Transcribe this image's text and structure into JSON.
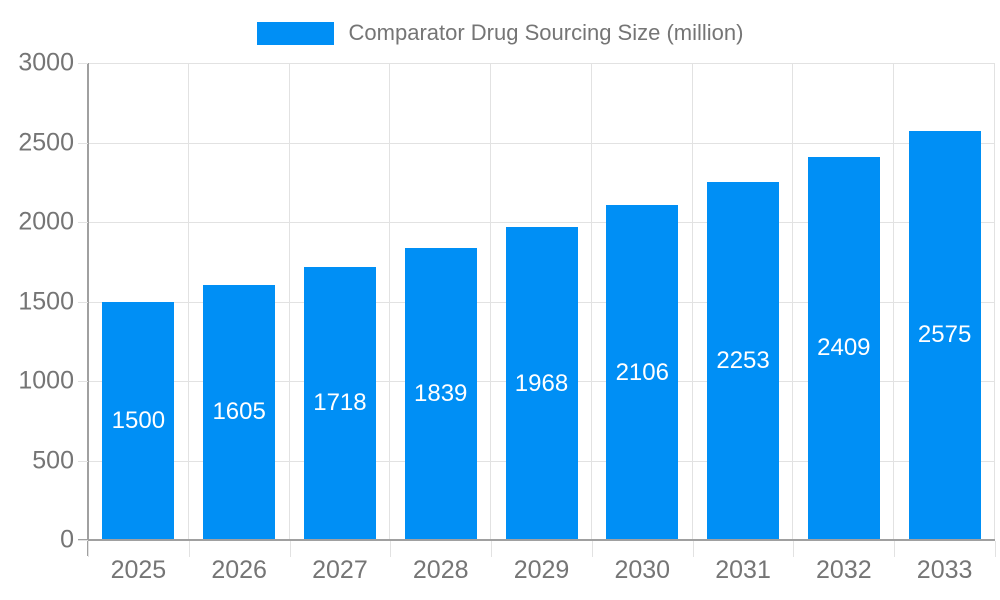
{
  "legend": {
    "label": "Comparator Drug Sourcing Size (million)"
  },
  "chart_data": {
    "type": "bar",
    "title": "Comparator Drug Sourcing Size (million)",
    "categories": [
      "2025",
      "2026",
      "2027",
      "2028",
      "2029",
      "2030",
      "2031",
      "2032",
      "2033"
    ],
    "values": [
      1500,
      1605,
      1718,
      1839,
      1968,
      2106,
      2253,
      2409,
      2575
    ],
    "xlabel": "",
    "ylabel": "",
    "ylim": [
      0,
      3000
    ],
    "yticks": [
      0,
      500,
      1000,
      1500,
      2000,
      2500,
      3000
    ],
    "grid": true,
    "legend_position": "top-center",
    "bar_value_labels": "inside-center"
  },
  "colors": {
    "bar": "#008ff5",
    "text": "#757575",
    "bar_label": "#ffffff",
    "grid": "#e2e2e2",
    "axis_line": "#a0a0a0",
    "background": "#ffffff"
  }
}
